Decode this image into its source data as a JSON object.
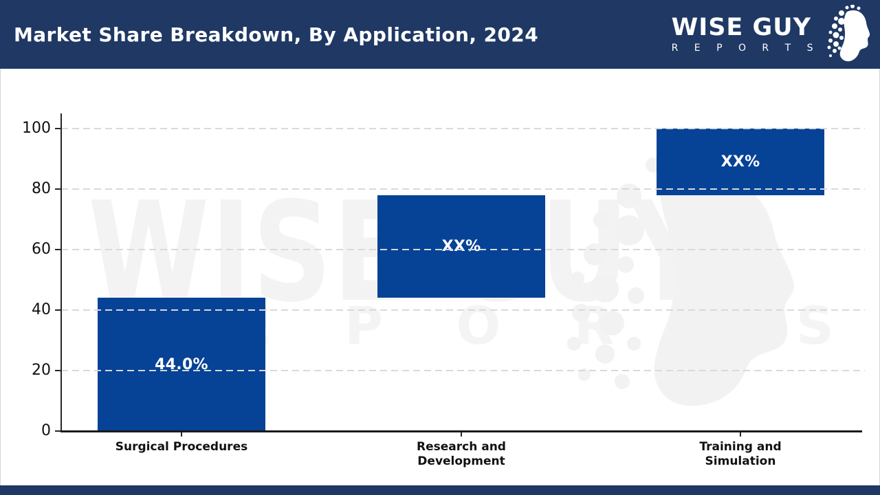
{
  "header": {
    "title": "Market Share Breakdown, By Application, 2024",
    "logo": {
      "line1": "WISE GUY",
      "line2": "R E P O R T S"
    }
  },
  "watermark": {
    "line1": "WISE GUY",
    "line2": "R E P O R T S"
  },
  "colors": {
    "header_bg": "#1f3864",
    "footer_bg": "#1f3864",
    "bar_blue": "#064296",
    "grid_gray": "#d9d9d9",
    "axis_black": "#1a1a1a",
    "watermark_gray": "#f3f3f3"
  },
  "chart_data": {
    "type": "bar",
    "subtype": "stepped-segment-bars (waterfall style)",
    "title": "Market Share Breakdown, By Application, 2024",
    "categories": [
      "Surgical Procedures",
      "Research and Development",
      "Training and Simulation"
    ],
    "segments": [
      {
        "category": "Surgical Procedures",
        "start": 0,
        "end": 44,
        "label": "44.0%"
      },
      {
        "category": "Research and Development",
        "start": 44,
        "end": 78,
        "label": "XX%"
      },
      {
        "category": "Training and Simulation",
        "start": 78,
        "end": 100,
        "label": "XX%"
      }
    ],
    "xlabel": "",
    "ylabel": "",
    "ylim": [
      0,
      100
    ],
    "yticks": [
      0,
      20,
      40,
      60,
      80,
      100
    ],
    "grid": "horizontal dashed, drawn above bars",
    "legend": "none",
    "bar_color": "#064296"
  }
}
